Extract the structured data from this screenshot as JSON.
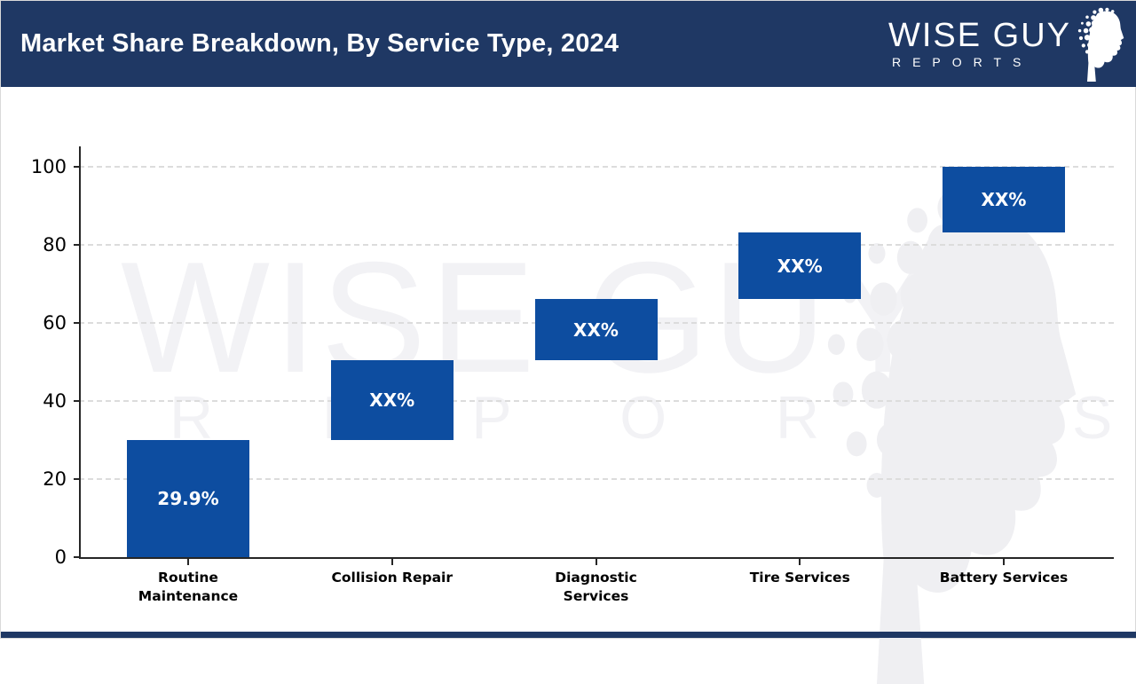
{
  "header": {
    "title": "Market Share Breakdown, By Service Type, 2024",
    "logo": {
      "line1": "WISE GUY",
      "line2": "REPORTS"
    },
    "background_color": "#1f3864",
    "text_color": "#ffffff"
  },
  "watermark": {
    "line1": "WISE GUY",
    "line2": "R E P O R T S",
    "color": "#f2f2f5"
  },
  "chart_data": {
    "type": "bar",
    "subtype": "waterfall",
    "title": "Market Share Breakdown, By Service Type, 2024",
    "categories": [
      "Routine Maintenance",
      "Collision Repair",
      "Diagnostic Services",
      "Tire Services",
      "Battery Services"
    ],
    "category_label_lines": [
      [
        "Routine",
        "Maintenance"
      ],
      [
        "Collision Repair"
      ],
      [
        "Diagnostic",
        "Services"
      ],
      [
        "Tire Services"
      ],
      [
        "Battery Services"
      ]
    ],
    "segments": [
      {
        "category": "Routine Maintenance",
        "start": 0,
        "end": 29.9,
        "label": "29.9%"
      },
      {
        "category": "Collision Repair",
        "start": 29.9,
        "end": 50.4,
        "label": "XX%"
      },
      {
        "category": "Diagnostic Services",
        "start": 50.4,
        "end": 66.1,
        "label": "XX%"
      },
      {
        "category": "Tire Services",
        "start": 66.1,
        "end": 83.2,
        "label": "XX%"
      },
      {
        "category": "Battery Services",
        "start": 83.2,
        "end": 100,
        "label": "XX%"
      }
    ],
    "y_ticks": [
      0,
      20,
      40,
      60,
      80,
      100
    ],
    "ylim": [
      0,
      105
    ],
    "xlabel": "",
    "ylabel": "",
    "legend_position": "none",
    "grid": "horizontal-dashed",
    "bar_color": "#0d4da0",
    "bar_label_color": "#ffffff",
    "gridline_color": "#dcdcdc",
    "axis_color": "#262626"
  },
  "footer": {
    "background_color": "#1f3864"
  }
}
